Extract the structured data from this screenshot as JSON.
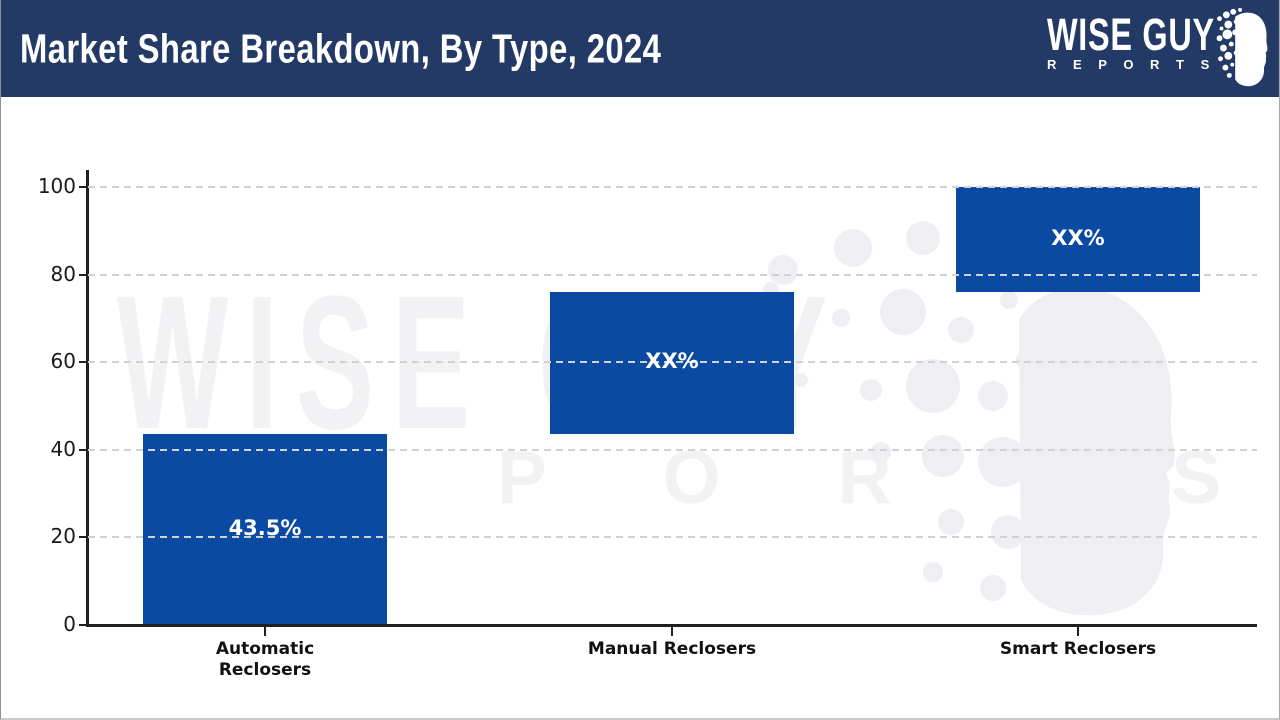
{
  "header": {
    "title": "Market Share Breakdown, By Type, 2024",
    "bg_color": "#233A66",
    "logo": {
      "name": "Wise Guy Reports",
      "line1": "WISE GUY",
      "line2": "R E P O R T S"
    }
  },
  "watermark": {
    "line1": "WISE GUY",
    "line2": "R E P O R T S"
  },
  "chart_data": {
    "type": "bar",
    "variant": "stacked-waterfall-percentage",
    "title": "Market Share Breakdown, By Type, 2024",
    "categories": [
      "Automatic Reclosers",
      "Manual Reclosers",
      "Smart Reclosers"
    ],
    "category_lines": [
      [
        "Automatic",
        "Reclosers"
      ],
      [
        "Manual Reclosers"
      ],
      [
        "Smart Reclosers"
      ]
    ],
    "bars": [
      {
        "category": "Automatic Reclosers",
        "label": "43.5%",
        "start": 0,
        "end": 43.5
      },
      {
        "category": "Manual Reclosers",
        "label": "XX%",
        "start": 43.5,
        "end": 76
      },
      {
        "category": "Smart Reclosers",
        "label": "XX%",
        "start": 76,
        "end": 100
      }
    ],
    "bar_color": "#0B4AA2",
    "value_label_color": "#FFFFFF",
    "yticks": [
      0,
      20,
      40,
      60,
      80,
      100
    ],
    "ylim": [
      0,
      100
    ],
    "grid": true,
    "grid_style": "dashed",
    "legend": false,
    "xlabel": "",
    "ylabel": ""
  }
}
